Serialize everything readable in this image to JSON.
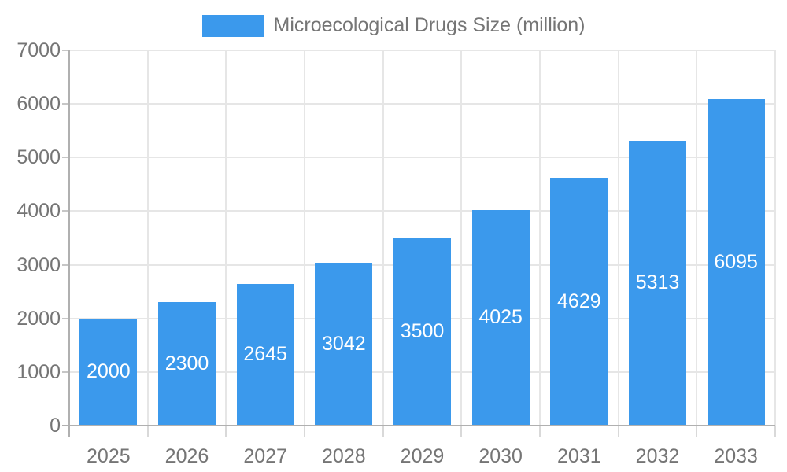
{
  "chart_data": {
    "type": "bar",
    "title": "",
    "legend_label": "Microecological Drugs Size (million)",
    "legend_position": "top",
    "categories": [
      "2025",
      "2026",
      "2027",
      "2028",
      "2029",
      "2030",
      "2031",
      "2032",
      "2033"
    ],
    "values": [
      2000,
      2300,
      2645,
      3042,
      3500,
      4025,
      4629,
      5313,
      6095
    ],
    "xlabel": "",
    "ylabel": "",
    "ylim": [
      0,
      7000
    ],
    "ytick_step": 1000,
    "ytick_labels": [
      "0",
      "1000",
      "2000",
      "3000",
      "4000",
      "5000",
      "6000",
      "7000"
    ],
    "grid": true,
    "bar_labels_inside": true
  },
  "colors": {
    "bar_fill": "#3B99EC",
    "bar_label_text": "#FFFFFF",
    "axis_text": "#757575",
    "legend_text": "#757575",
    "gridline": "#E6E6E6",
    "axis_line": "#B0B0B0",
    "y_tick": "#C6C6C6",
    "x_tick": "#D9D9D9",
    "background": "#FFFFFF"
  }
}
